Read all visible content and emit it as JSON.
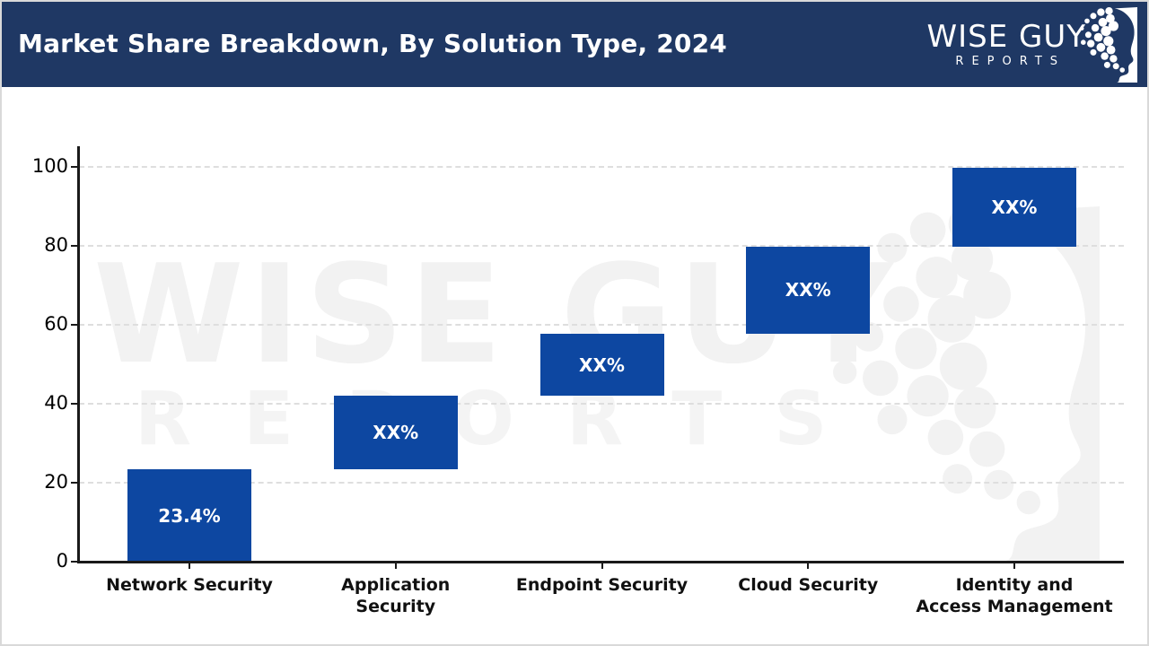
{
  "header": {
    "title": "Market Share Breakdown, By Solution Type, 2024",
    "logo": {
      "line1": "WISE GUY",
      "line2": "REPORTS"
    }
  },
  "watermark": {
    "line1": "WISE GUY",
    "line2": "REPORTS"
  },
  "colors": {
    "header_bg": "#1f3864",
    "bar": "#0d47a1",
    "bar_label": "#ffffff",
    "axis": "#1a1a1a",
    "gridline": "#dedede",
    "watermark": "#f2f2f2"
  },
  "chart_data": {
    "type": "bar",
    "subtype": "waterfall",
    "title": "Market Share Breakdown, By Solution Type, 2024",
    "categories": [
      "Network Security",
      "Application\nSecurity",
      "Endpoint Security",
      "Cloud Security",
      "Identity and\nAccess Management"
    ],
    "segments": [
      {
        "start": 0,
        "end": 23.4,
        "label": "23.4%"
      },
      {
        "start": 23.4,
        "end": 42.0,
        "label": "XX%"
      },
      {
        "start": 42.0,
        "end": 57.7,
        "label": "XX%"
      },
      {
        "start": 57.7,
        "end": 79.8,
        "label": "XX%"
      },
      {
        "start": 79.8,
        "end": 99.8,
        "label": "XX%"
      }
    ],
    "yticks": [
      0,
      20,
      40,
      60,
      80,
      100
    ],
    "ylim": [
      0,
      105
    ],
    "xlabel": "",
    "ylabel": "",
    "grid": "horizontal-dashed",
    "legend": "none"
  }
}
